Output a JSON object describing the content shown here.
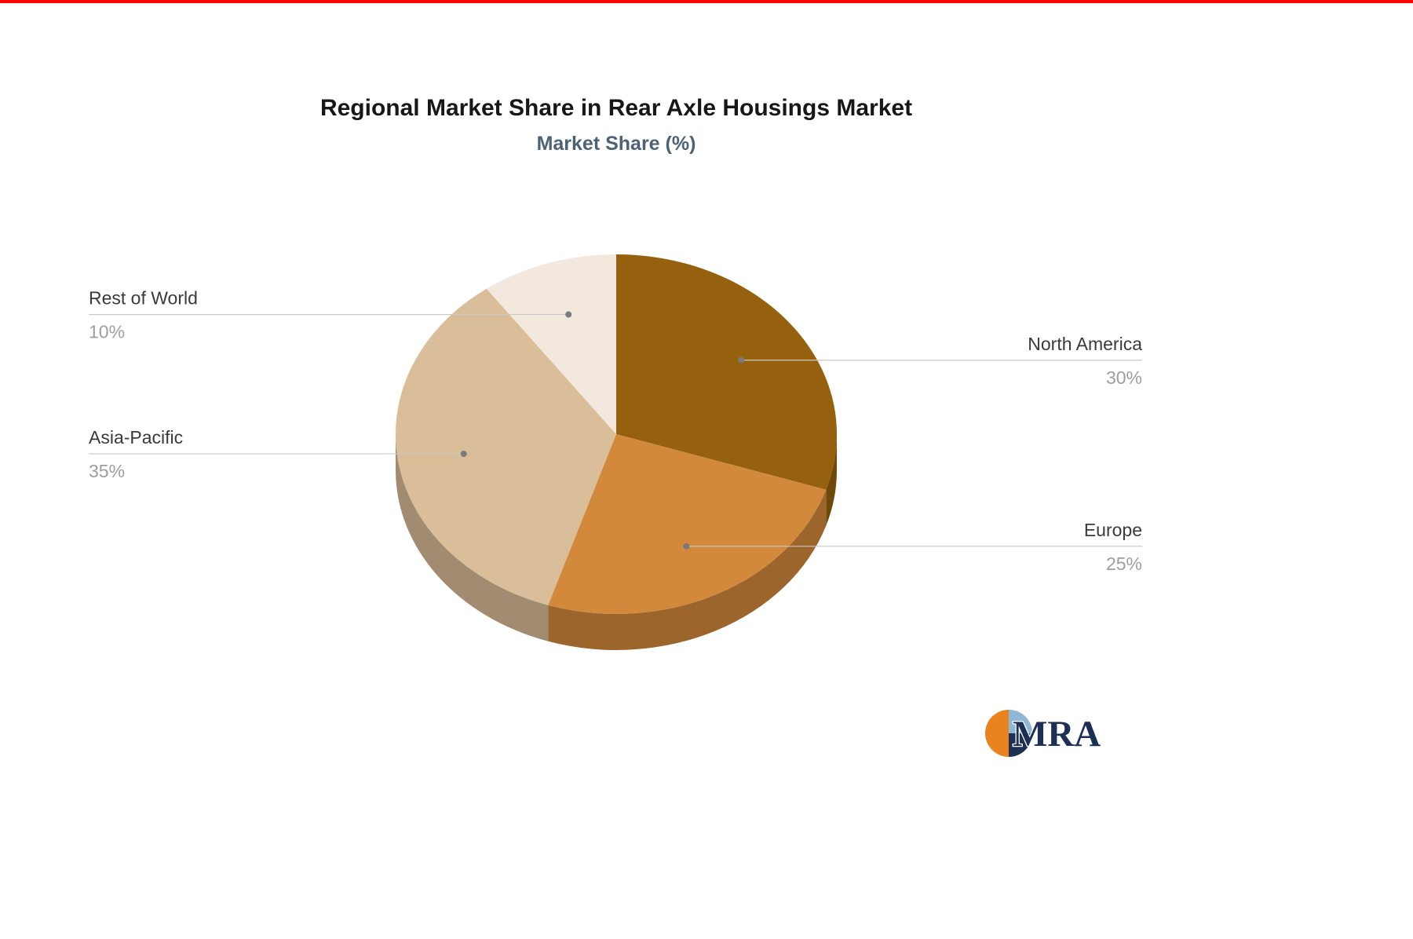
{
  "page": {
    "top_border_color": "#fe0000",
    "background_color": "#ffffff"
  },
  "header": {
    "title": "Regional Market Share in Rear Axle Housings Market",
    "subtitle": "Market Share (%)"
  },
  "chart_data": {
    "type": "pie",
    "style": "3d",
    "title": "Regional Market Share in Rear Axle Housings Market",
    "subtitle": "Market Share (%)",
    "start_angle_deg": 0,
    "direction": "clockwise",
    "value_suffix": "%",
    "legend_position": "none",
    "slices": [
      {
        "label": "North America",
        "value": 30,
        "color": "#96610e",
        "label_side": "right"
      },
      {
        "label": "Europe",
        "value": 25,
        "color": "#d2893c",
        "label_side": "right"
      },
      {
        "label": "Asia-Pacific",
        "value": 35,
        "color": "#dabd99",
        "label_side": "left"
      },
      {
        "label": "Rest of World",
        "value": 10,
        "color": "#f2e8dd",
        "label_side": "left"
      }
    ],
    "label_name_color": "#3a3a3a",
    "label_value_color": "#9e9e9e",
    "connector_color": "#c9c9c9",
    "connector_dot_color": "#7a7a7a"
  },
  "logo": {
    "text": "MRA",
    "text_color": "#1e2f55",
    "mark_colors": {
      "orange": "#e8831d",
      "light_blue": "#8fb8d8",
      "navy": "#1e2f55"
    }
  }
}
